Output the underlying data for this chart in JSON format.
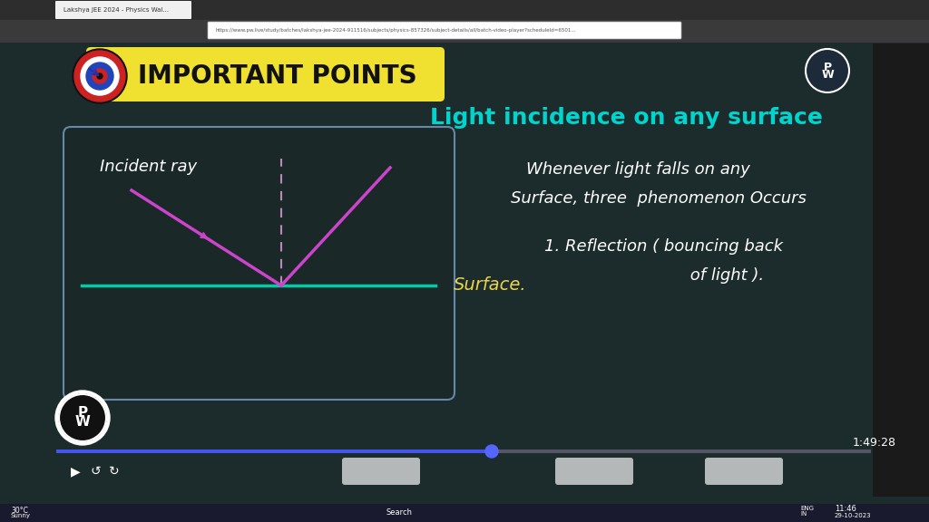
{
  "bg_color": "#1c2b2b",
  "title_text": "IMPORTANT POINTS",
  "title_bg": "#f0e030",
  "title_text_color": "#111111",
  "heading_text": "Light incidence on any surface",
  "heading_color": "#00d4cc",
  "body_lines": [
    "Whenever light falls on any",
    "Surface, three  phenomenon Occurs",
    "1. Reflection ( bouncing back",
    "                     of light )."
  ],
  "body_color": "#ffffff",
  "surface_label": "Surface.",
  "surface_label_color": "#e8d44d",
  "incident_ray_label": "Incident ray",
  "incident_ray_color": "#ffffff",
  "ray_color": "#cc44cc",
  "surface_line_color": "#00ccaa",
  "normal_line_color": "#bb88bb",
  "diagram_box_edge": "#6688aa",
  "browser_bg": "#2d2d2d",
  "tab_bg": "#f0f0f0",
  "content_bg": "#1c2b2b",
  "progress_fill": "#4455ee",
  "progress_dot": "#5566ff",
  "progress_bg": "#555566"
}
